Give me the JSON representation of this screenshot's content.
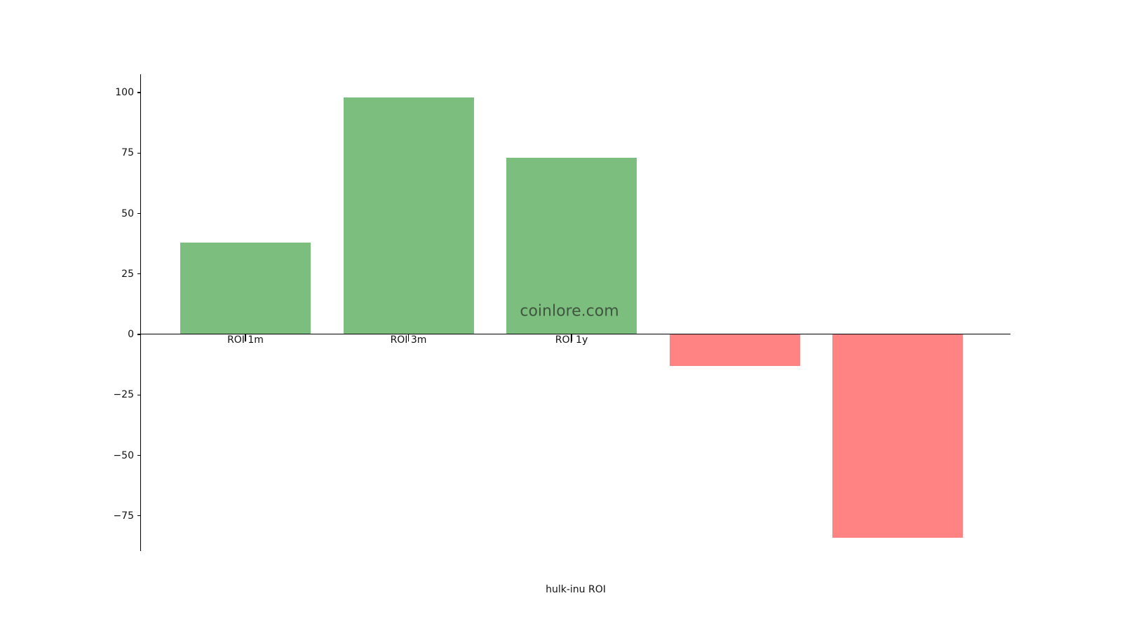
{
  "watermark": {
    "text": "coinlore.com"
  },
  "chart_data": {
    "type": "bar",
    "title": "",
    "xlabel": "hulk-inu ROI",
    "ylabel": "",
    "categories": [
      "ROI 1m",
      "ROI 3m",
      "ROI 1y",
      "",
      ""
    ],
    "values": [
      38,
      98,
      73,
      -13,
      -84
    ],
    "series": [
      {
        "name": "ROI",
        "values": [
          38,
          98,
          73,
          -13,
          -84
        ]
      }
    ],
    "positive_color": "#7cbe7d",
    "negative_color": "#ff8383",
    "axis_color": "#000000",
    "text_color": "#111111",
    "grid": false,
    "legend": null,
    "ylim": [
      -93,
      107
    ],
    "y_ticks": [
      {
        "label": "100",
        "value": 100
      },
      {
        "label": "75",
        "value": 75
      },
      {
        "label": "50",
        "value": 50
      },
      {
        "label": "25",
        "value": 25
      },
      {
        "label": "0",
        "value": 0
      },
      {
        "label": "−25",
        "value": -25
      },
      {
        "label": "−50",
        "value": -50
      },
      {
        "label": "−75",
        "value": -75
      }
    ],
    "hidden_x_tick_labels_note": "labels of the two negative bars are covered by the bars themselves"
  }
}
